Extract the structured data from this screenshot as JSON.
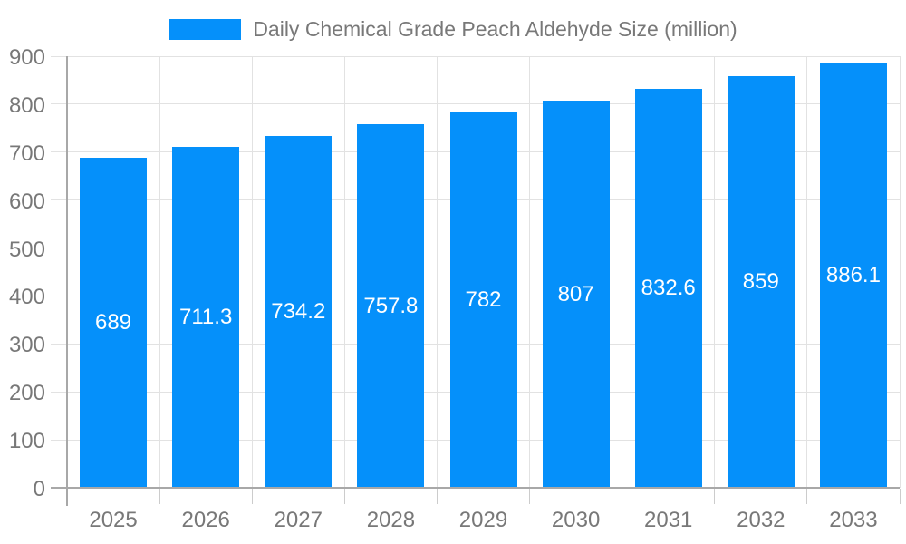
{
  "legend": {
    "label": "Daily Chemical Grade Peach Aldehyde Size (million)"
  },
  "chart_data": {
    "type": "bar",
    "title": "Daily Chemical Grade Peach Aldehyde Size (million)",
    "legend_entries": [
      "Daily Chemical Grade Peach Aldehyde Size (million)"
    ],
    "legend_position": "top-center",
    "categories": [
      "2025",
      "2026",
      "2027",
      "2028",
      "2029",
      "2030",
      "2031",
      "2032",
      "2033"
    ],
    "series": [
      {
        "name": "Daily Chemical Grade Peach Aldehyde Size (million)",
        "values": [
          689,
          711.3,
          734.2,
          757.8,
          782,
          807,
          832.6,
          859,
          886.1
        ]
      }
    ],
    "value_labels": [
      "689",
      "711.3",
      "734.2",
      "757.8",
      "782",
      "807",
      "832.6",
      "859",
      "886.1"
    ],
    "value_label_position": "inside-middle",
    "ylim": [
      0,
      900
    ],
    "ytick_step": 100,
    "ytick_labels": [
      "0",
      "100",
      "200",
      "300",
      "400",
      "500",
      "600",
      "700",
      "800",
      "900"
    ],
    "grid": true,
    "colors": {
      "bar": "#0590fa",
      "axis_text": "#787878",
      "value_text": "#ffffff",
      "gridline": "#e2e2e2",
      "axis_line": "#a8a8a8"
    }
  }
}
